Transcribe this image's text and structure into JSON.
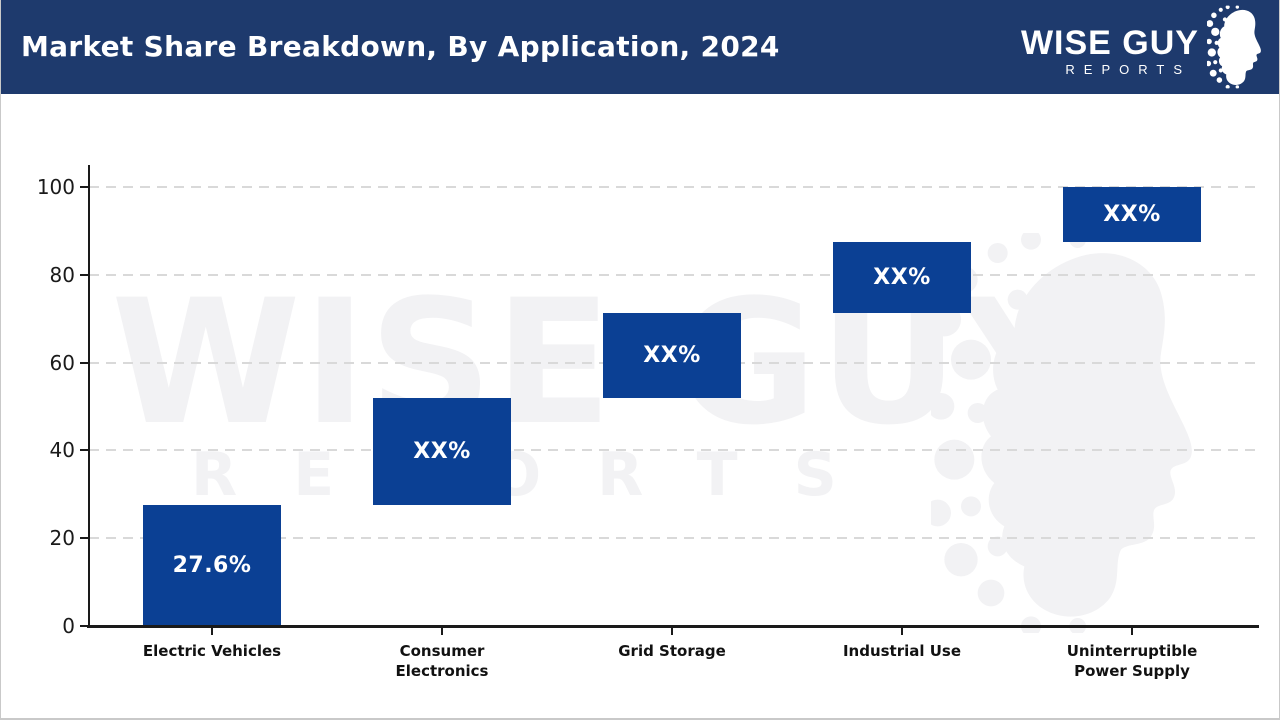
{
  "header": {
    "title": "Market Share Breakdown, By Application, 2024",
    "bg_color": "#1e3a6d",
    "logo": {
      "wordmark": "WISE GUY",
      "subtext": "REPORTS"
    }
  },
  "watermark": {
    "wordmark": "WISE GUY",
    "subtext": "REPORTS"
  },
  "chart_data": {
    "type": "bar",
    "subtype": "waterfall",
    "title": "Market Share Breakdown, By Application, 2024",
    "xlabel": "",
    "ylabel": "",
    "ylim": [
      0,
      105
    ],
    "y_ticks": [
      0,
      20,
      40,
      60,
      80,
      100
    ],
    "grid": true,
    "grid_style": "dashed",
    "legend_position": "none",
    "bar_color": "#0b4094",
    "bar_label_color": "#ffffff",
    "categories": [
      "Electric Vehicles",
      "Consumer Electronics",
      "Grid Storage",
      "Industrial Use",
      "Uninterruptible Power Supply"
    ],
    "segments": [
      {
        "category": "Electric Vehicles",
        "start": 0,
        "end": 27.6,
        "share": 27.6,
        "label": "27.6%"
      },
      {
        "category": "Consumer Electronics",
        "start": 27.6,
        "end": 52.0,
        "share": 24.4,
        "label": "XX%"
      },
      {
        "category": "Grid Storage",
        "start": 52.0,
        "end": 71.3,
        "share": 19.3,
        "label": "XX%"
      },
      {
        "category": "Industrial Use",
        "start": 71.3,
        "end": 87.5,
        "share": 16.2,
        "label": "XX%"
      },
      {
        "category": "Uninterruptible Power Supply",
        "start": 87.5,
        "end": 100.0,
        "share": 12.5,
        "label": "XX%"
      }
    ]
  }
}
